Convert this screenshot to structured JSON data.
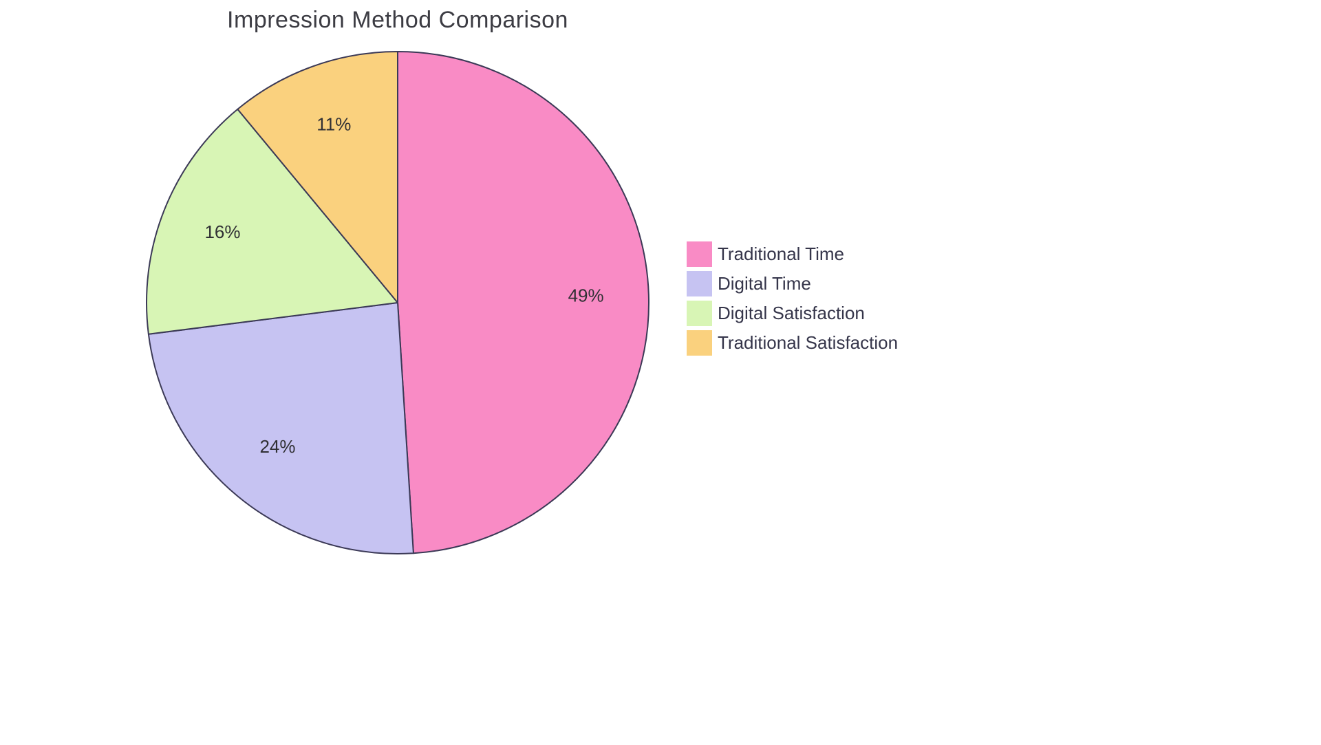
{
  "chart_data": {
    "type": "pie",
    "title": "Impression Method Comparison",
    "labels": [
      "Traditional Time",
      "Digital Time",
      "Digital Satisfaction",
      "Traditional Satisfaction"
    ],
    "values": [
      49,
      24,
      16,
      11
    ],
    "percent_labels": [
      "49%",
      "24%",
      "16%",
      "11%"
    ],
    "colors": [
      "#F98BC5",
      "#C6C3F2",
      "#D8F5B5",
      "#FAD17E"
    ],
    "stroke_color": "#3B3956",
    "slice_text_color": "#303034",
    "title_color": "#3C3C43",
    "legend_text_color": "#35354A",
    "start_angle_deg": 0,
    "direction": "clockwise",
    "legend_position": "right",
    "background": "#FFFFFF"
  }
}
